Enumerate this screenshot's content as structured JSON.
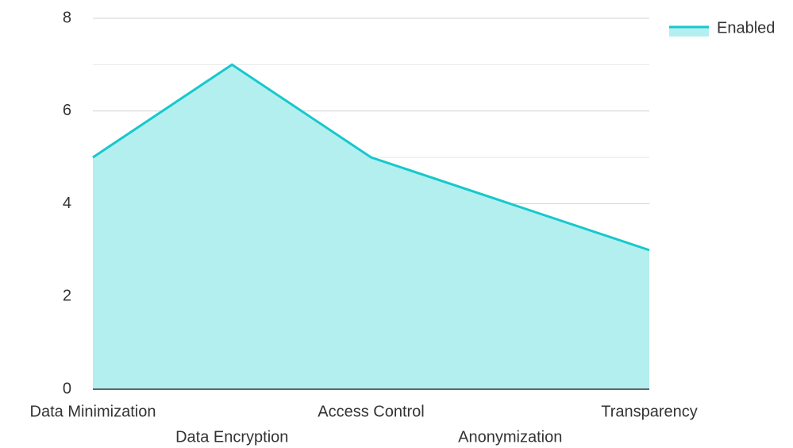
{
  "chart_data": {
    "type": "area",
    "categories": [
      "Data Minimization",
      "Data Encryption",
      "Access Control",
      "Anonymization",
      "Transparency"
    ],
    "series": [
      {
        "name": "Enabled",
        "color": "#17c8cc",
        "fill": "#b3efee",
        "values": [
          5,
          7,
          5,
          4,
          3
        ]
      }
    ],
    "ylim": [
      0,
      8
    ],
    "yticks": [
      0,
      2,
      4,
      6,
      8
    ],
    "yminor": [
      1,
      3,
      5,
      7
    ],
    "grid": true,
    "legend": "top-right"
  }
}
